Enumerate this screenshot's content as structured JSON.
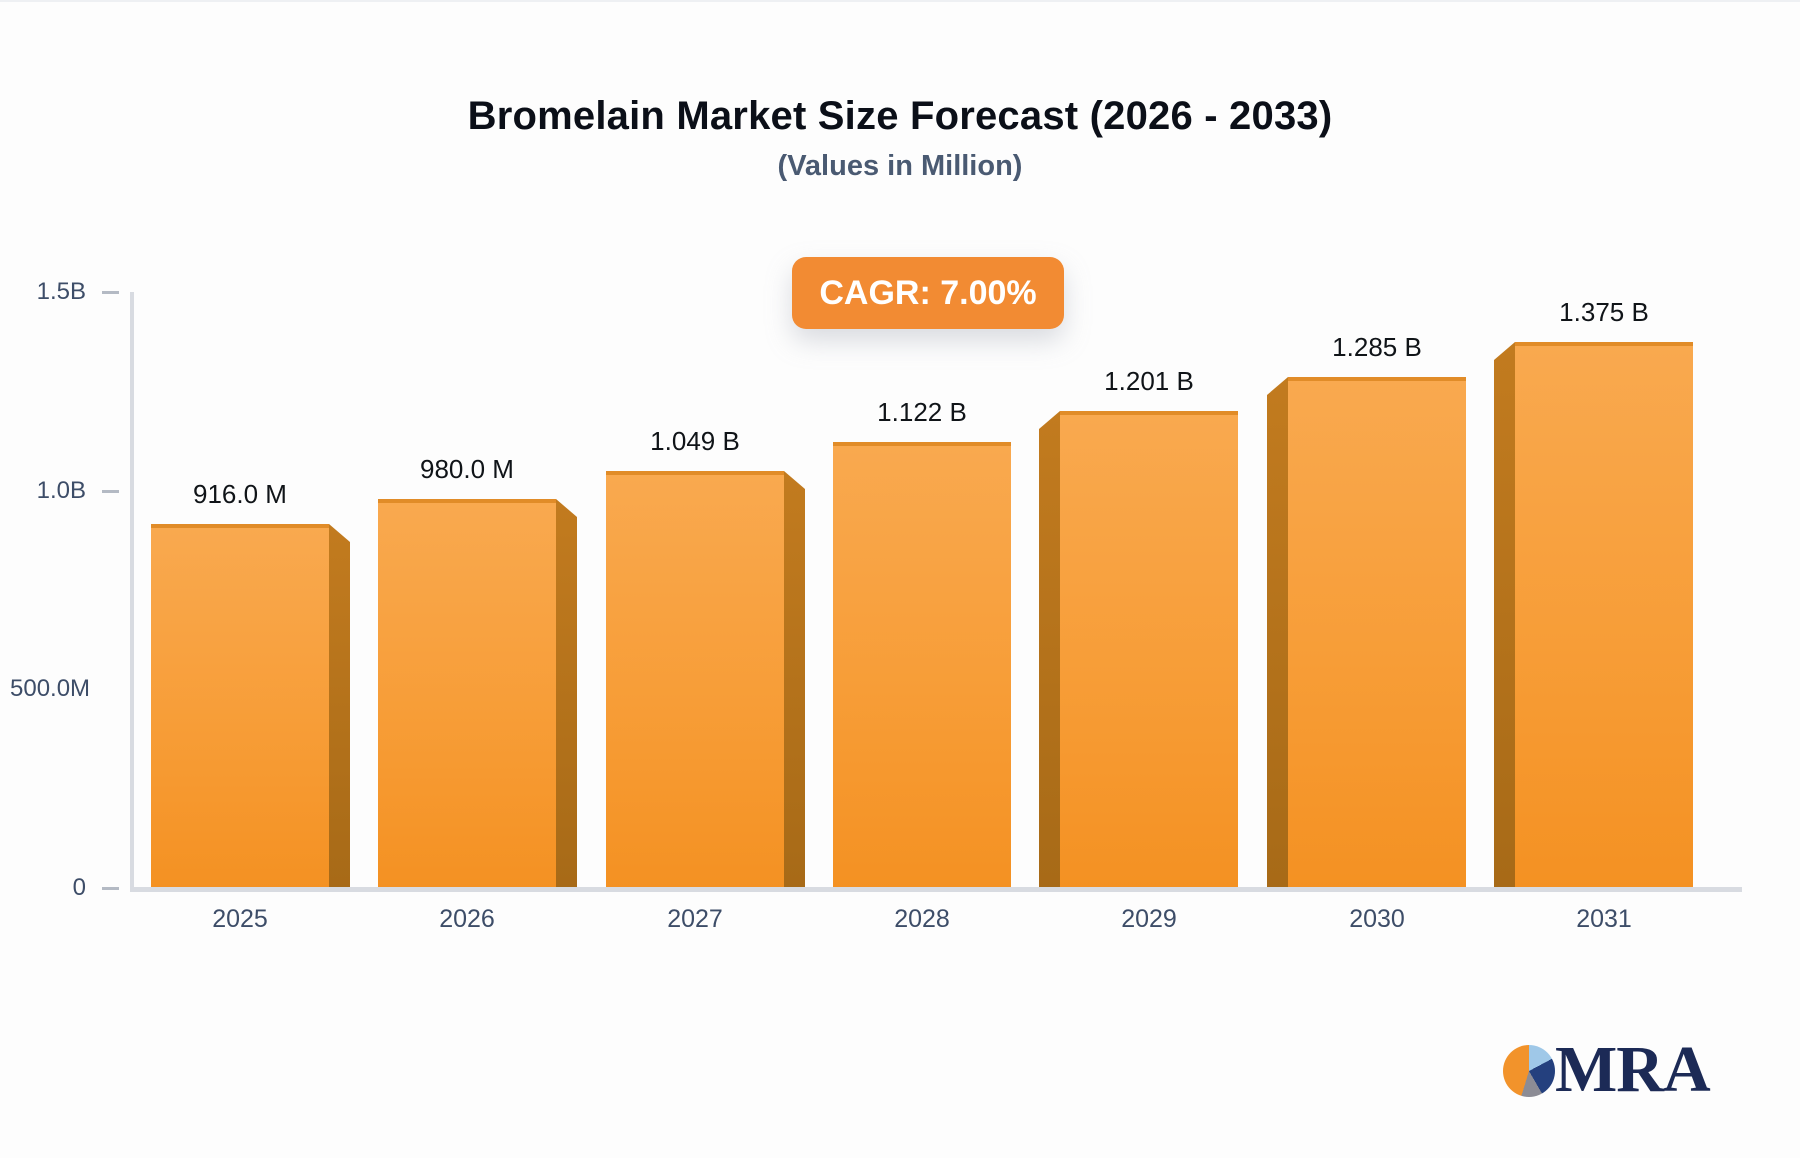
{
  "header": {
    "title": "Bromelain Market Size Forecast (2026 - 2033)",
    "subtitle": "(Values in Million)"
  },
  "badge": {
    "label": "CAGR: 7.00%",
    "color": "#f28b33"
  },
  "chart_data": {
    "type": "bar",
    "title": "Bromelain Market Size Forecast (2026 - 2033)",
    "subtitle": "(Values in Million)",
    "cagr": "7.00%",
    "categories": [
      "2025",
      "2026",
      "2027",
      "2028",
      "2029",
      "2030",
      "2031"
    ],
    "values_million": [
      916.0,
      980.0,
      1049.0,
      1122.0,
      1201.0,
      1285.0,
      1375.0
    ],
    "value_labels": [
      "916.0 M",
      "980.0 M",
      "1.049 B",
      "1.122 B",
      "1.201 B",
      "1.285 B",
      "1.375 B"
    ],
    "y_axis": {
      "range_million": [
        0,
        1500
      ],
      "ticks": [
        {
          "label": "1.5B",
          "value_million": 1500,
          "dash": true
        },
        {
          "label": "1.0B",
          "value_million": 1000,
          "dash": true
        },
        {
          "label": "500.0M",
          "value_million": 500,
          "dash": false
        },
        {
          "label": "0",
          "value_million": 0,
          "dash": true
        }
      ]
    },
    "grid": false,
    "legend": false,
    "bar_colors": {
      "face_top": "#f9a94f",
      "face_bottom": "#f49122",
      "top_edge": "#e18c28",
      "side_3d": "#b5701c"
    }
  },
  "logo": {
    "text": "MRA",
    "icon": "pie-chart-icon",
    "text_color": "#1c2a56",
    "pie_colors": [
      "#f2932b",
      "#9fc8e8",
      "#24407e",
      "#8c8c95"
    ]
  }
}
